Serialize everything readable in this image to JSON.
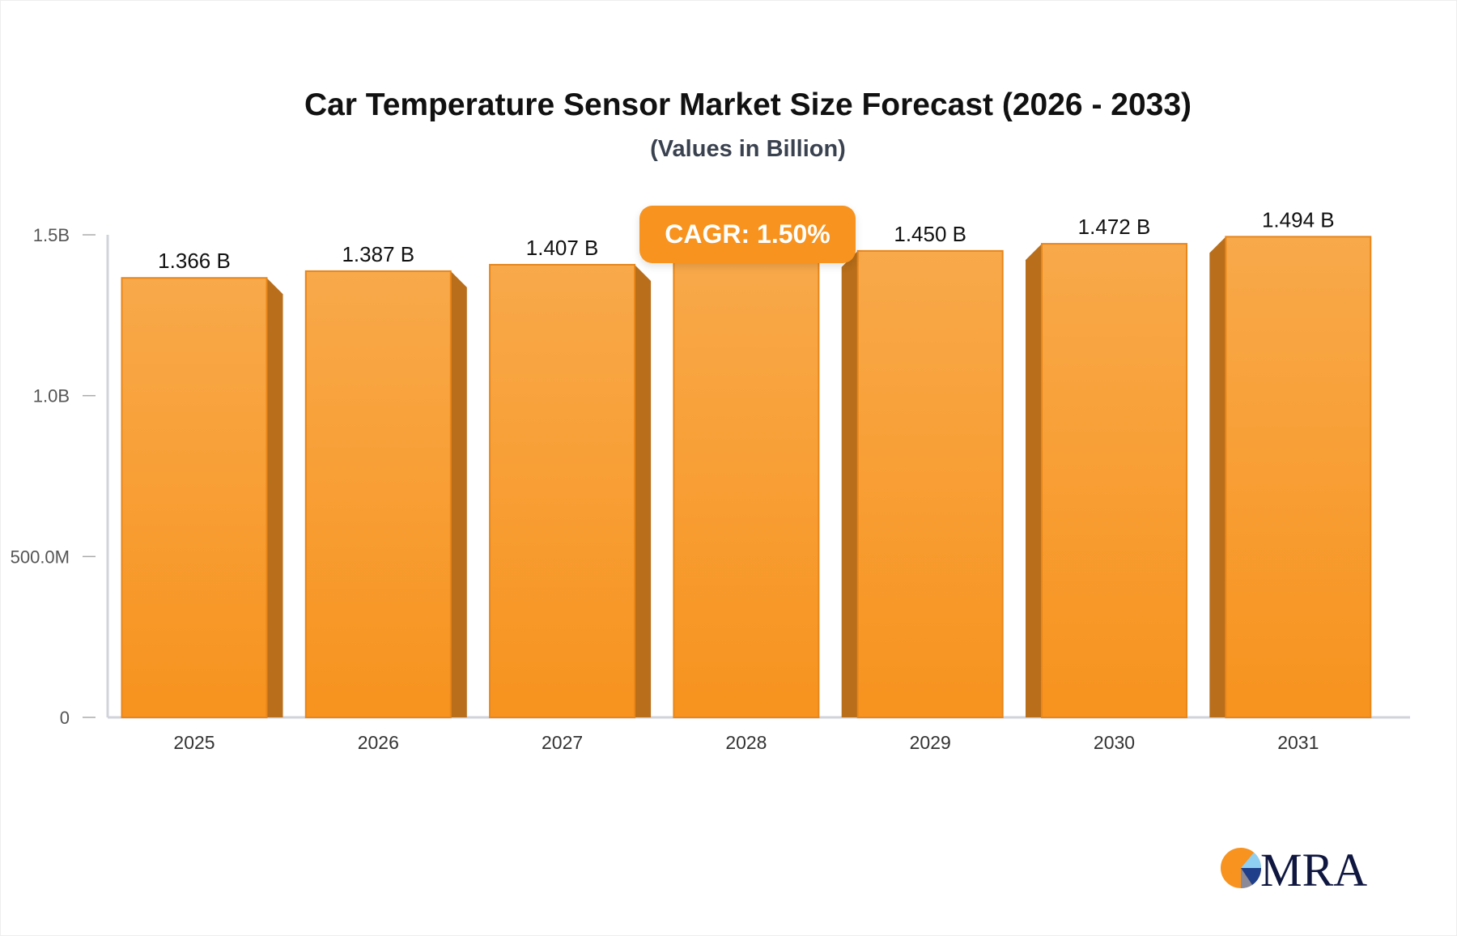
{
  "chart_data": {
    "type": "bar",
    "title": "Car Temperature Sensor Market Size Forecast (2026 - 2033)",
    "subtitle": "(Values in Billion)",
    "categories": [
      "2025",
      "2026",
      "2027",
      "2028",
      "2029",
      "2030",
      "2031"
    ],
    "values": [
      1.366,
      1.387,
      1.407,
      1.429,
      1.45,
      1.472,
      1.494
    ],
    "data_labels": [
      "1.366 B",
      "1.387 B",
      "1.407 B",
      "",
      "1.450 B",
      "1.472 B",
      "1.494 B"
    ],
    "y_ticks": [
      {
        "value": 0,
        "label": "0"
      },
      {
        "value": 0.5,
        "label": "500.0M"
      },
      {
        "value": 1.0,
        "label": "1.0B"
      },
      {
        "value": 1.5,
        "label": "1.5B"
      }
    ],
    "ylim": [
      0,
      1.5
    ],
    "grid": false,
    "annotation": "CAGR: 1.50%",
    "colors": {
      "bar_top": "#F8A94A",
      "bar_bottom": "#F7931E",
      "bar_side": "#B86E1A",
      "axis": "#d0d3da"
    }
  },
  "logo": {
    "text": "MRA"
  }
}
